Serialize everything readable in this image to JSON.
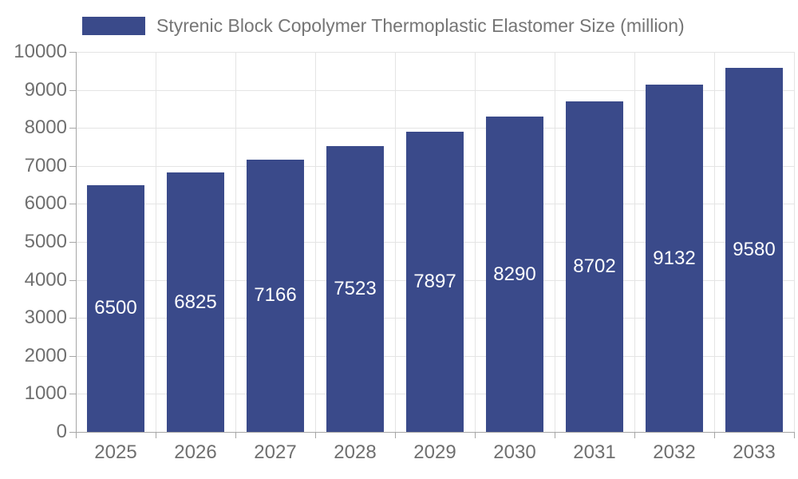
{
  "chart_data": {
    "type": "bar",
    "title": "Styrenic Block Copolymer Thermoplastic Elastomer Size (million)",
    "categories": [
      "2025",
      "2026",
      "2027",
      "2028",
      "2029",
      "2030",
      "2031",
      "2032",
      "2033"
    ],
    "values": [
      6500,
      6825,
      7166,
      7523,
      7897,
      8290,
      8702,
      9132,
      9580
    ],
    "xlabel": "",
    "ylabel": "",
    "ylim": [
      0,
      10000
    ],
    "ytick_interval": 1000,
    "yticks": [
      0,
      1000,
      2000,
      3000,
      4000,
      5000,
      6000,
      7000,
      8000,
      9000,
      10000
    ],
    "grid": "both",
    "legend_position": "top-left",
    "bar_labels_inside": true,
    "colors": {
      "bar": "#3A4A8A",
      "bar_label_text": "#ffffff",
      "axis_text": "#6f6f6f",
      "legend_text": "#757575",
      "gridline": "#e4e4e4",
      "axis_line": "#a6a6a6",
      "background": "#ffffff"
    }
  }
}
